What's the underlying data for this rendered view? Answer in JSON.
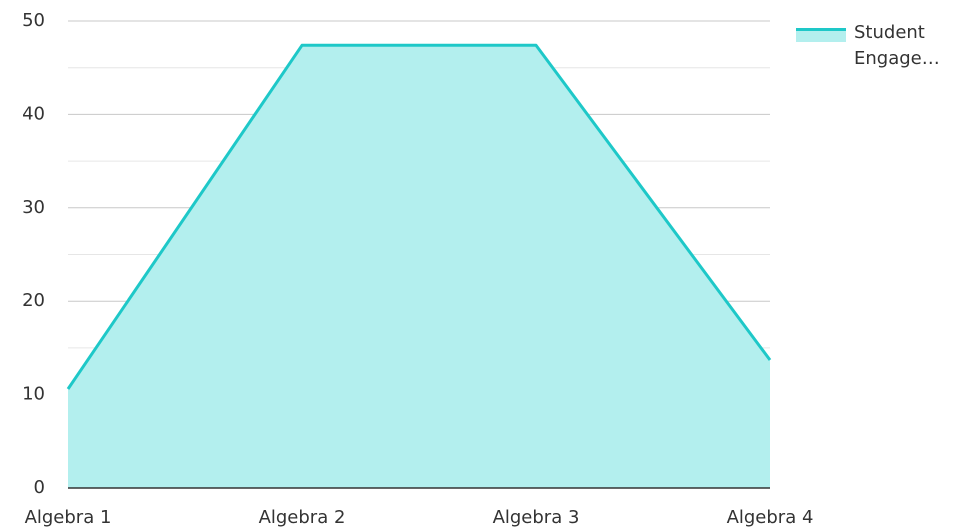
{
  "chart_data": {
    "type": "area",
    "categories": [
      "Algebra 1",
      "Algebra 2",
      "Algebra 3",
      "Algebra 4"
    ],
    "series": [
      {
        "name": "Student Engage…",
        "color": "#1ec8c8",
        "fill": "#b3efee",
        "values": [
          10.6,
          47.4,
          47.4,
          13.7
        ]
      }
    ],
    "ylim": [
      0,
      50
    ],
    "yticks": [
      0,
      10,
      20,
      30,
      40,
      50
    ],
    "yticks_minor": [
      5,
      15,
      25,
      35,
      45
    ],
    "grid": true,
    "legend": "top-right"
  }
}
